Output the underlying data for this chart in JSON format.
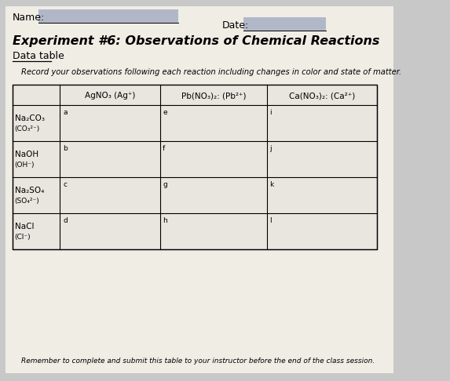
{
  "bg_color": "#c8c8c8",
  "paper_color": "#f0ede5",
  "title": "Experiment #6: Observations of Chemical Reactions",
  "subtitle": "Data table",
  "instruction": "Record your observations following each reaction including changes in color and state of matter.",
  "name_label": "Name:",
  "date_label": "Date:",
  "col_headers": [
    "AgNO₃ (Ag⁺)",
    "Pb(NO₃)₂: (Pb²⁺)",
    "Ca(NO₃)₂: (Ca²⁺)"
  ],
  "row_headers": [
    [
      "Na₂CO₃",
      "(CO₃²⁻)"
    ],
    [
      "NaOH",
      "(OH⁻)"
    ],
    [
      "Na₂SO₄",
      "(SO₄²⁻)"
    ],
    [
      "NaCl",
      "(Cl⁻)"
    ]
  ],
  "cell_labels": [
    [
      "a",
      "e",
      "i"
    ],
    [
      "b",
      "f",
      "j"
    ],
    [
      "c",
      "g",
      "k"
    ],
    [
      "d",
      "h",
      "l"
    ]
  ],
  "footer": "Remember to complete and submit this table to your instructor before the end of the class session.",
  "table_bg": "#e8e6df",
  "highlight_color": "#b0b8c8"
}
